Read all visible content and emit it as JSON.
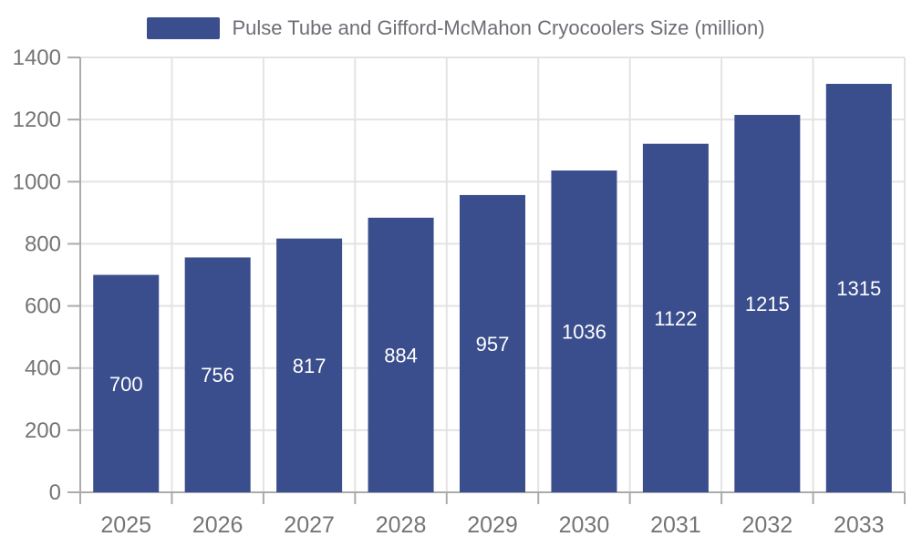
{
  "legend": {
    "label": "Pulse Tube and Gifford-McMahon Cryocoolers Size (million)"
  },
  "colors": {
    "bar": "#3a4d8c",
    "grid": "#e3e3e3",
    "axis": "#ababab",
    "tick_label": "#757575",
    "bar_label": "#ffffff",
    "legend_text": "#6d6d76"
  },
  "chart_data": {
    "type": "bar",
    "title": "Pulse Tube and Gifford-McMahon Cryocoolers Size (million)",
    "categories": [
      "2025",
      "2026",
      "2027",
      "2028",
      "2029",
      "2030",
      "2031",
      "2032",
      "2033"
    ],
    "values": [
      700,
      756,
      817,
      884,
      957,
      1036,
      1122,
      1215,
      1315
    ],
    "xlabel": "",
    "ylabel": "",
    "ylim": [
      0,
      1400
    ],
    "yticks": [
      0,
      200,
      400,
      600,
      800,
      1000,
      1200,
      1400
    ],
    "grid": true,
    "legend_position": "top",
    "bar_value_labels": true,
    "bar_label_position": "center"
  }
}
